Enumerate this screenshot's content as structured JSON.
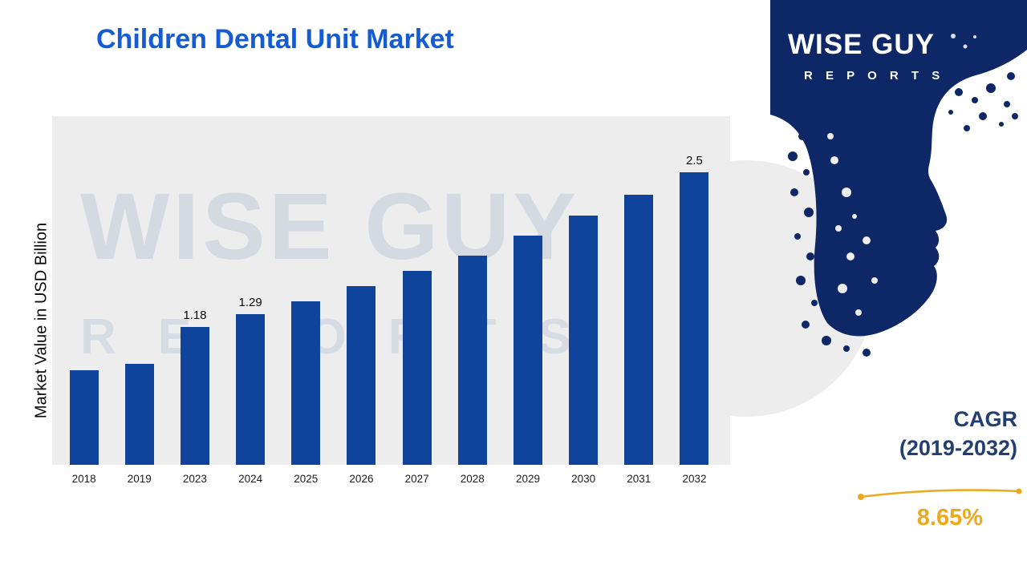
{
  "title": "Children Dental Unit Market",
  "y_axis_label": "Market Value in USD Billion",
  "logo": {
    "line1": "WISE GUY",
    "line2": "R E P O R T S"
  },
  "watermark": {
    "line1": "WISE GUY",
    "line2": "REPORTS"
  },
  "cagr": {
    "line1": "CAGR",
    "line2": "(2019-2032)",
    "value": "8.65%"
  },
  "colors": {
    "title_blue": "#155bd2",
    "bar_blue": "#10439c",
    "navy": "#0e2766",
    "gold": "#eca91c",
    "chart_bg": "#ededed",
    "watermark": "#b7c1d6",
    "cagr_text": "#233f72"
  },
  "chart_data": {
    "type": "bar",
    "title": "Children Dental Unit Market",
    "xlabel": "",
    "ylabel": "Market Value in USD Billion",
    "categories": [
      "2018",
      "2019",
      "2023",
      "2024",
      "2025",
      "2026",
      "2027",
      "2028",
      "2029",
      "2030",
      "2031",
      "2032"
    ],
    "values": [
      0.81,
      0.86,
      1.18,
      1.29,
      1.4,
      1.53,
      1.66,
      1.79,
      1.96,
      2.13,
      2.31,
      2.5
    ],
    "bar_labels": [
      "",
      "",
      "1.18",
      "1.29",
      "",
      "",
      "",
      "",
      "",
      "",
      "",
      "2.5"
    ],
    "ylim": [
      0,
      2.6
    ],
    "grid": false,
    "legend": "none",
    "cagr_percent": 8.65,
    "cagr_period": "2019-2032"
  }
}
